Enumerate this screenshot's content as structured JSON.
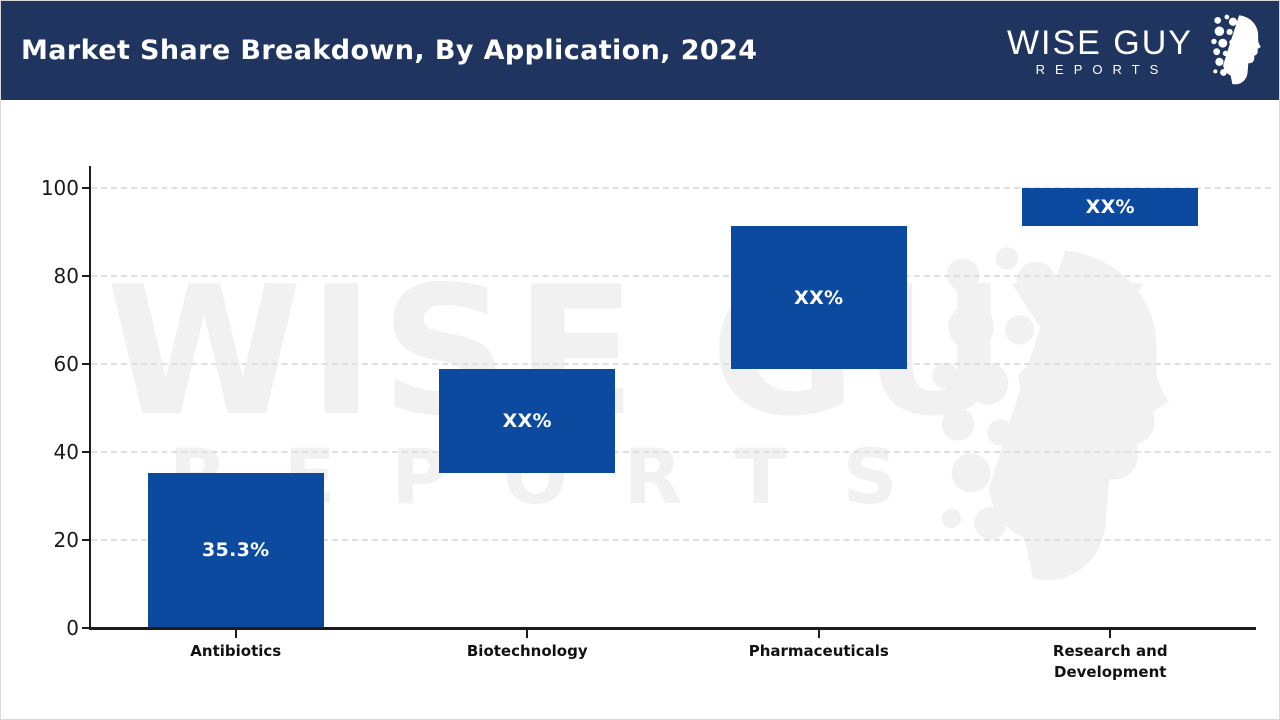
{
  "header": {
    "title": "Market Share Breakdown, By Application, 2024",
    "bg_color": "#1f3560",
    "brand_line1": "WISE GUY",
    "brand_line2": "REPORTS"
  },
  "watermark": {
    "line1": "WISE GUY",
    "line2": "REPORTS"
  },
  "chart_data": {
    "type": "bar",
    "subtype": "floating-segment-waterfall",
    "title": "Market Share Breakdown, By Application, 2024",
    "categories": [
      "Antibiotics",
      "Biotechnology",
      "Pharmaceuticals",
      "Research and Development"
    ],
    "segments": [
      {
        "category": "Antibiotics",
        "start": 0,
        "end": 35.3,
        "label": "35.3%"
      },
      {
        "category": "Biotechnology",
        "start": 35.3,
        "end": 58.8,
        "label": "XX%"
      },
      {
        "category": "Pharmaceuticals",
        "start": 58.8,
        "end": 91.4,
        "label": "XX%"
      },
      {
        "category": "Research and Development",
        "start": 91.4,
        "end": 100,
        "label": "XX%"
      }
    ],
    "xlabel": "",
    "ylabel": "",
    "yticks": [
      0,
      20,
      40,
      60,
      80,
      100
    ],
    "ylim": [
      0,
      105
    ],
    "bar_color": "#0c4aa0",
    "bar_label_color": "#ffffff",
    "grid": "horizontal-dashed",
    "legend": "none"
  }
}
